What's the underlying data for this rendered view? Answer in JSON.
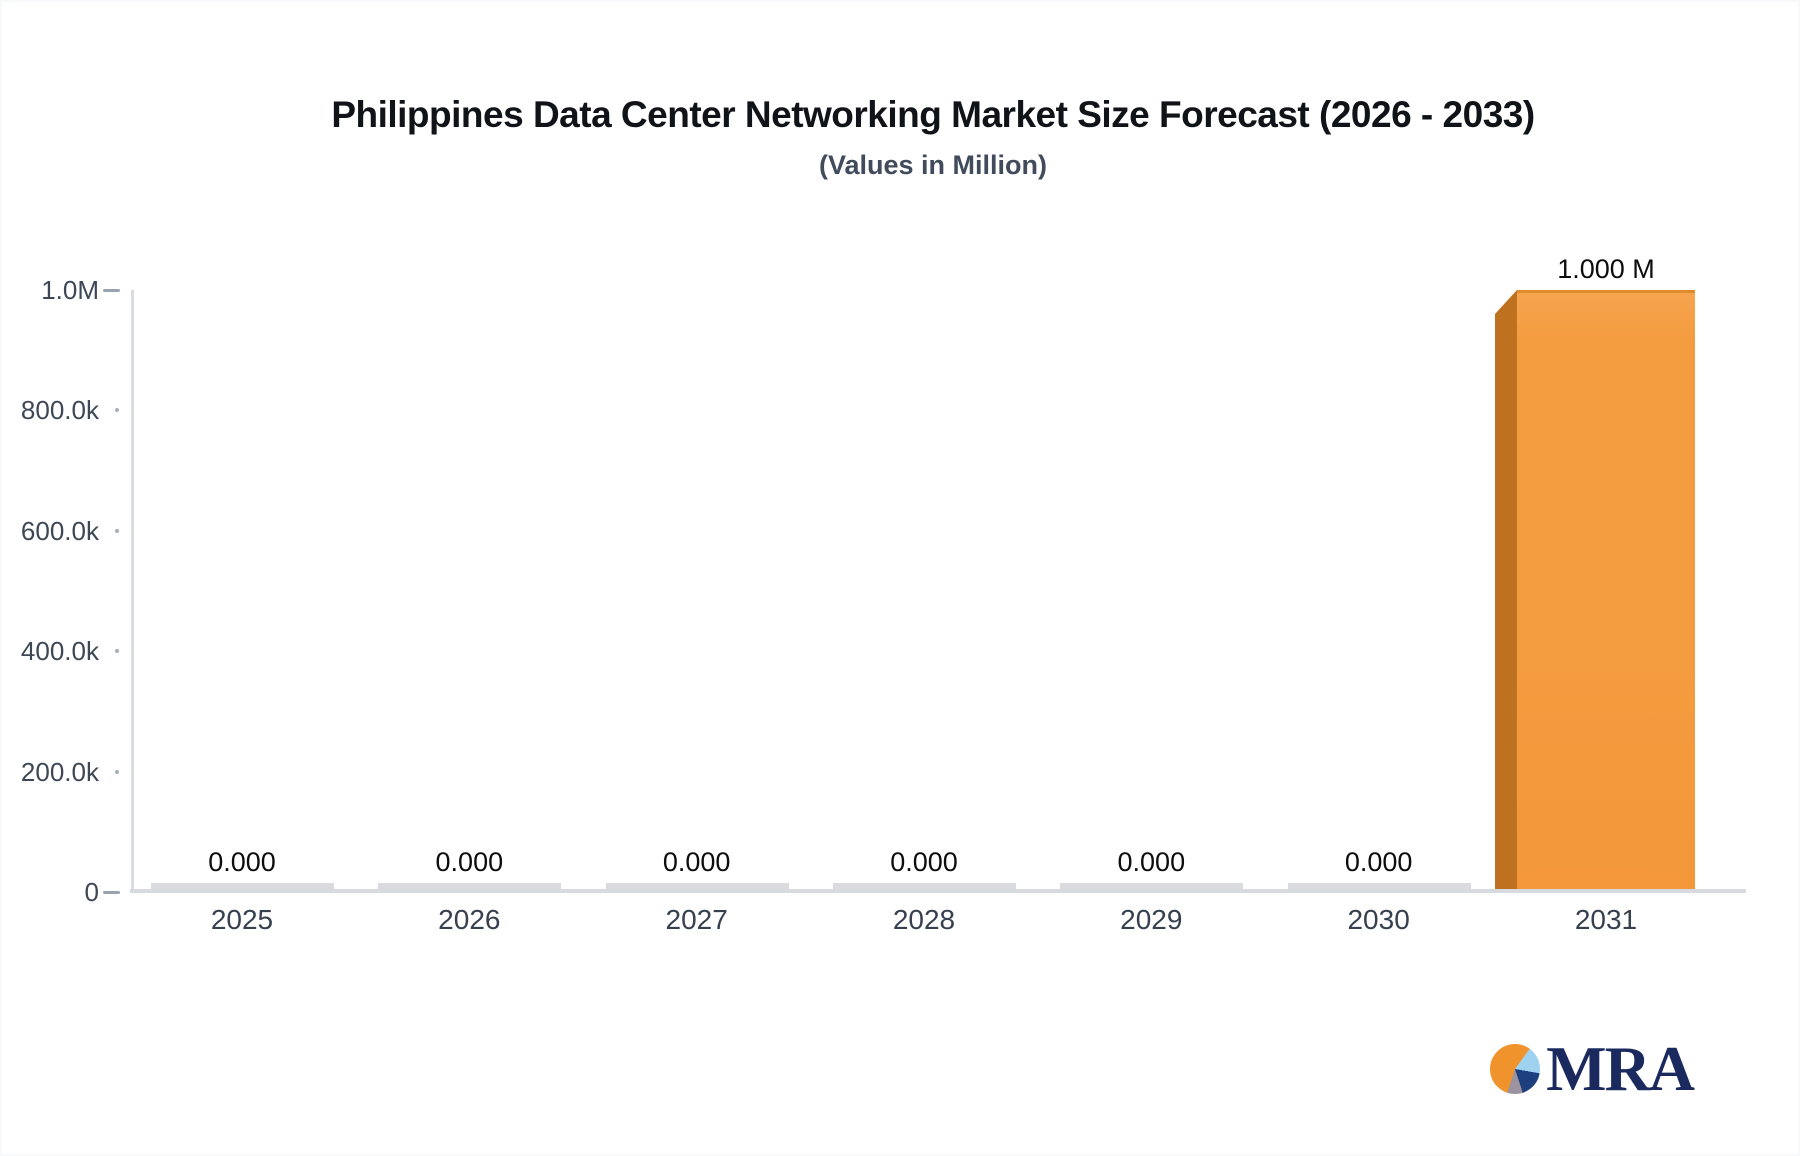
{
  "title": "Philippines Data Center Networking Market Size Forecast (2026 - 2033)",
  "subtitle": "(Values in Million)",
  "logo": {
    "text": "MRA",
    "icon": "pie-chart-icon"
  },
  "colors": {
    "bar_face": "#F49C40",
    "bar_side": "#BE711F",
    "bar_top_edge": "#DD8D2E",
    "zero_bar": "#D9DBDE",
    "axis_line": "#D9DCE1",
    "tick": "#9AA4AF",
    "y_label": "#3D4755",
    "x_label": "#36404F",
    "value_label": "#0D0D0D",
    "title": "#101418",
    "subtitle": "#414B5C",
    "logo_navy": "#1B2A5E",
    "pie_orange": "#F0932C",
    "pie_lightblue": "#9FD2F0",
    "pie_darkblue": "#1E3F7D",
    "pie_gray": "#9B94A0"
  },
  "chart_data": {
    "type": "bar",
    "title": "Philippines Data Center Networking Market Size Forecast (2026 - 2033)",
    "subtitle": "(Values in Million)",
    "categories": [
      "2025",
      "2026",
      "2027",
      "2028",
      "2029",
      "2030",
      "2031"
    ],
    "values": [
      0,
      0,
      0,
      0,
      0,
      0,
      1000000
    ],
    "value_labels": [
      "0.000",
      "0.000",
      "0.000",
      "0.000",
      "0.000",
      "0.000",
      "1.000 M"
    ],
    "ylim": [
      0,
      1000000
    ],
    "y_tick_values": [
      1000000,
      800000,
      600000,
      400000,
      200000,
      0
    ],
    "y_tick_labels": [
      "1.0M",
      "800.0k",
      "600.0k",
      "400.0k",
      "200.0k",
      "0"
    ],
    "xlabel": "",
    "ylabel": "",
    "grid": false,
    "legend": false,
    "bar_style": "3d",
    "bar_color": "#F49C40"
  }
}
